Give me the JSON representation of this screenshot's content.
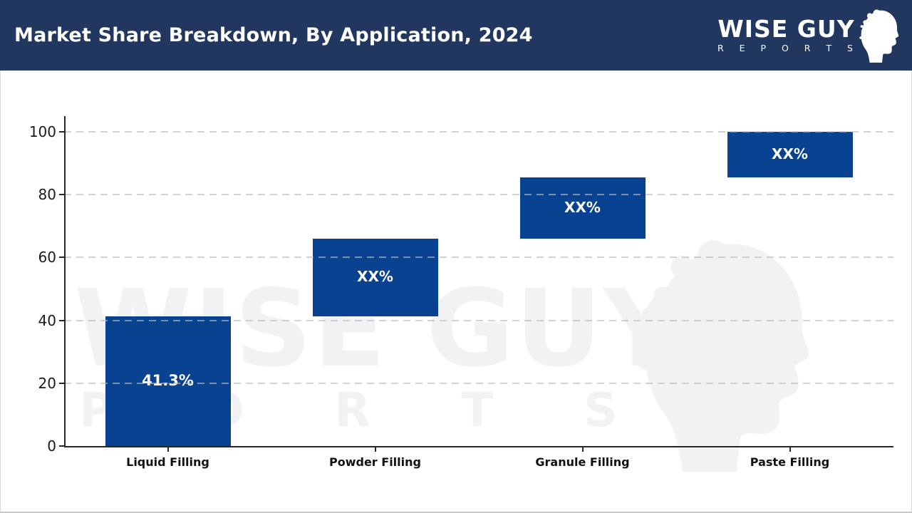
{
  "header": {
    "title": "Market Share Breakdown, By Application, 2024",
    "logo": {
      "line1": "WISE GUY",
      "line2": "REPORTS"
    }
  },
  "watermark": {
    "line1": "WISE GUY",
    "line2": "P O R T S"
  },
  "colors": {
    "header_bg": "#21375f",
    "bar": "#084291",
    "bar_label": "#ffffff",
    "grid": "#d9d9d9",
    "axis": "#262626",
    "watermark": "#f1f2f4"
  },
  "chart_data": {
    "type": "bar",
    "subtype": "waterfall",
    "title": "Market Share Breakdown, By Application, 2024",
    "xlabel": "",
    "ylabel": "",
    "categories": [
      "Liquid Filling",
      "Powder Filling",
      "Granule Filling",
      "Paste Filling"
    ],
    "segments": [
      {
        "category": "Liquid Filling",
        "start": 0,
        "end": 41.3,
        "label": "41.3%"
      },
      {
        "category": "Powder Filling",
        "start": 41.3,
        "end": 66,
        "label": "XX%"
      },
      {
        "category": "Granule Filling",
        "start": 66,
        "end": 85.5,
        "label": "XX%"
      },
      {
        "category": "Paste Filling",
        "start": 85.5,
        "end": 100,
        "label": "XX%"
      }
    ],
    "yticks": [
      0,
      20,
      40,
      60,
      80,
      100
    ],
    "ylim": [
      0,
      105
    ],
    "grid": "dashed-horizontal, drawn above bars",
    "legend": "none"
  }
}
